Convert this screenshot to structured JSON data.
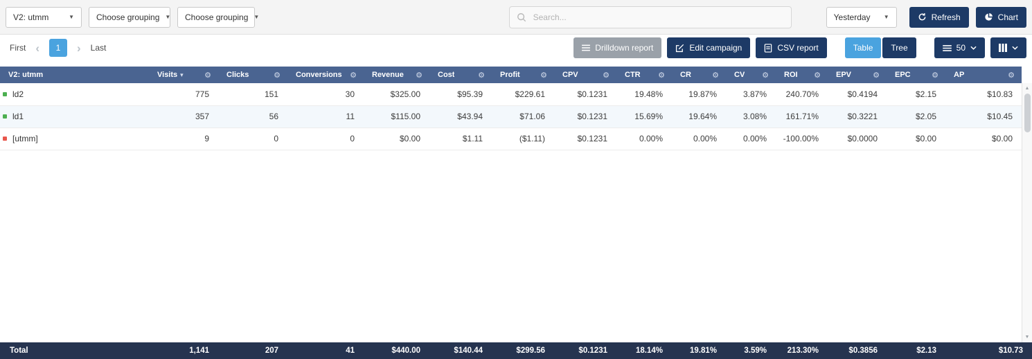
{
  "colors": {
    "accent_blue": "#4aa3df",
    "navy_button": "#1d3a66",
    "header_bg": "#4a6491",
    "total_bg": "#263450",
    "positive_text": "#2eb82e",
    "negative_text": "#e8473c",
    "row_alt_bg": "#f3f8fc",
    "toolbar_bg": "#f4f4f4"
  },
  "icons": {
    "gear": "⚙",
    "sort_desc": "▾",
    "caret_down": "▼",
    "prev": "‹",
    "next": "›",
    "scroll_up": "▲",
    "scroll_down": "▼"
  },
  "toolbar": {
    "campaign_filter": {
      "value": "V2: utmm"
    },
    "grouping_1": {
      "value": "Choose grouping"
    },
    "grouping_2": {
      "value": "Choose grouping"
    },
    "search": {
      "placeholder": "Search..."
    },
    "date_range": {
      "value": "Yesterday"
    },
    "refresh_button": "Refresh",
    "chart_button": "Chart"
  },
  "pagination": {
    "first": "First",
    "current_page": "1",
    "last": "Last"
  },
  "actions": {
    "drilldown": "Drilldown report",
    "edit_campaign": "Edit campaign",
    "csv": "CSV report",
    "view_table": "Table",
    "view_tree": "Tree",
    "page_size": "50"
  },
  "table": {
    "columns": [
      {
        "key": "name",
        "label": "V2: utmm",
        "gear": false
      },
      {
        "key": "visits",
        "label": "Visits",
        "gear": true,
        "sorted": "desc"
      },
      {
        "key": "clicks",
        "label": "Clicks",
        "gear": true
      },
      {
        "key": "conversions",
        "label": "Conversions",
        "gear": true
      },
      {
        "key": "revenue",
        "label": "Revenue",
        "gear": true
      },
      {
        "key": "cost",
        "label": "Cost",
        "gear": true
      },
      {
        "key": "profit",
        "label": "Profit",
        "gear": true,
        "colored": true
      },
      {
        "key": "cpv",
        "label": "CPV",
        "gear": true
      },
      {
        "key": "ctr",
        "label": "CTR",
        "gear": true
      },
      {
        "key": "cr",
        "label": "CR",
        "gear": true
      },
      {
        "key": "cv",
        "label": "CV",
        "gear": true
      },
      {
        "key": "roi",
        "label": "ROI",
        "gear": true,
        "colored": true
      },
      {
        "key": "epv",
        "label": "EPV",
        "gear": true
      },
      {
        "key": "epc",
        "label": "EPC",
        "gear": true
      },
      {
        "key": "ap",
        "label": "AP",
        "gear": true
      }
    ],
    "rows": [
      {
        "status": "green",
        "tone": "positive",
        "cells": [
          "ld2",
          "775",
          "151",
          "30",
          "$325.00",
          "$95.39",
          "$229.61",
          "$0.1231",
          "19.48%",
          "19.87%",
          "3.87%",
          "240.70%",
          "$0.4194",
          "$2.15",
          "$10.83"
        ]
      },
      {
        "status": "green",
        "tone": "positive",
        "cells": [
          "ld1",
          "357",
          "56",
          "11",
          "$115.00",
          "$43.94",
          "$71.06",
          "$0.1231",
          "15.69%",
          "19.64%",
          "3.08%",
          "161.71%",
          "$0.3221",
          "$2.05",
          "$10.45"
        ]
      },
      {
        "status": "red",
        "tone": "negative",
        "cells": [
          "[utmm]",
          "9",
          "0",
          "0",
          "$0.00",
          "$1.11",
          "($1.11)",
          "$0.1231",
          "0.00%",
          "0.00%",
          "0.00%",
          "-100.00%",
          "$0.0000",
          "$0.00",
          "$0.00"
        ]
      }
    ],
    "total": {
      "label": "Total",
      "tone": "positive",
      "cells": [
        "1,141",
        "207",
        "41",
        "$440.00",
        "$140.44",
        "$299.56",
        "$0.1231",
        "18.14%",
        "19.81%",
        "3.59%",
        "213.30%",
        "$0.3856",
        "$2.13",
        "$10.73"
      ]
    }
  }
}
